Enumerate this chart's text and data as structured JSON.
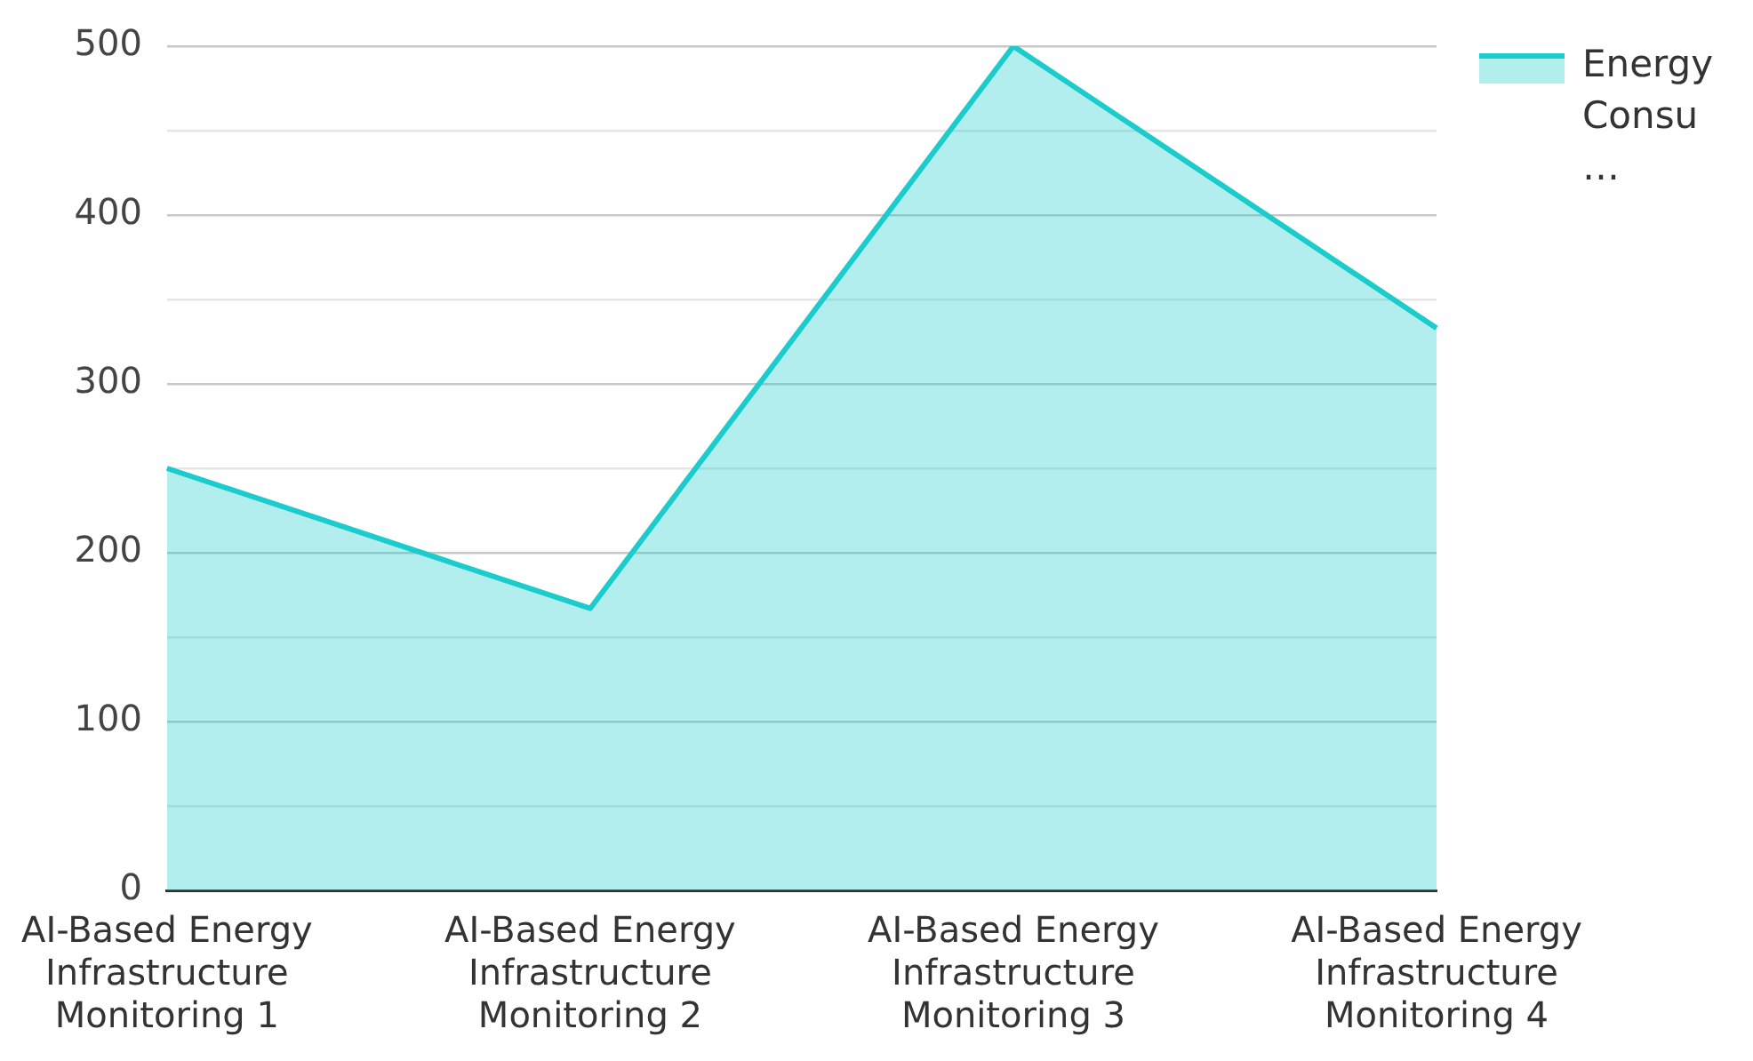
{
  "chart_data": {
    "type": "area",
    "categories": [
      "AI-Based Energy Infrastructure Monitoring 1",
      "AI-Based Energy Infrastructure Monitoring 2",
      "AI-Based Energy Infrastructure Monitoring 3",
      "AI-Based Energy Infrastructure Monitoring 4"
    ],
    "series": [
      {
        "name": "Energy Consu…",
        "color": "#1ccccc",
        "values": [
          250,
          167,
          500,
          333
        ]
      }
    ],
    "ylim": [
      0,
      500
    ],
    "yticks": [
      0,
      {
        "value": 50,
        "label": null
      },
      100,
      {
        "value": 150,
        "label": null
      },
      200,
      {
        "value": 250,
        "label": null
      },
      300,
      {
        "value": 350,
        "label": null
      },
      400,
      {
        "value": 450,
        "label": null
      },
      500
    ],
    "grid": "y",
    "legend": "top right",
    "marker": "none",
    "line_style": "solid"
  }
}
